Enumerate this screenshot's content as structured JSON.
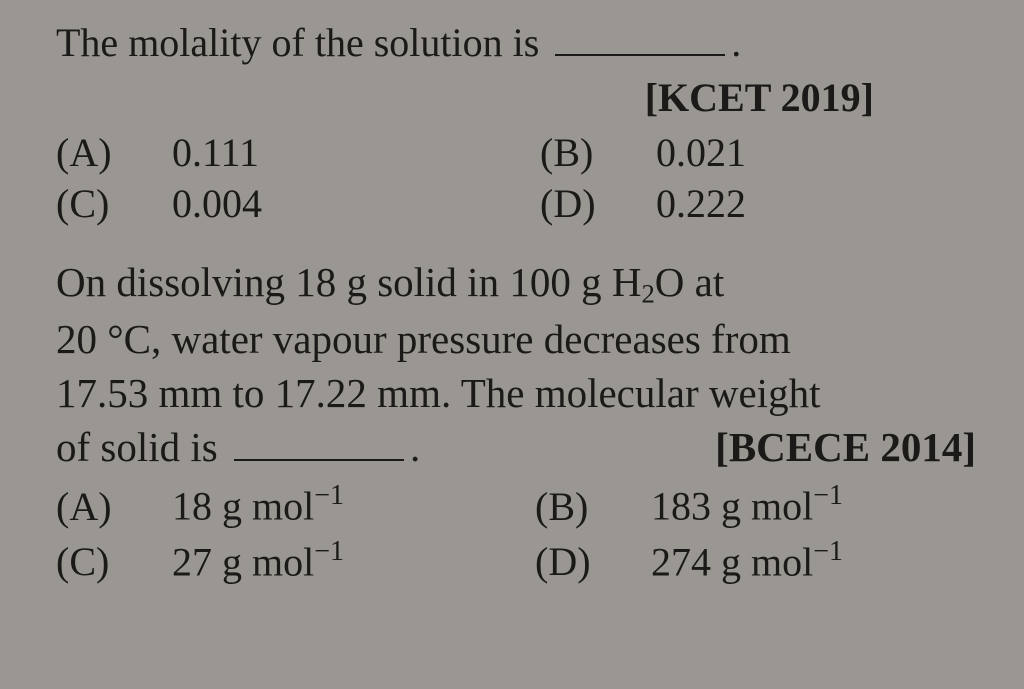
{
  "q1": {
    "stem_pre": "The molality of the solution is",
    "stem_post": ".",
    "tag": "[KCET 2019]",
    "options": {
      "A": {
        "letter": "(A)",
        "value": "0.111"
      },
      "B": {
        "letter": "(B)",
        "value": "0.021"
      },
      "C": {
        "letter": "(C)",
        "value": "0.004"
      },
      "D": {
        "letter": "(D)",
        "value": "0.222"
      }
    }
  },
  "q2": {
    "line1_a": "On dissolving 18 g solid in 100 g H",
    "line1_b": "O at",
    "h2o_sub": "2",
    "line2": "20 °C, water vapour pressure decreases from",
    "line3": "17.53 mm to 17.22 mm. The molecular weight",
    "line4_pre": "of solid is",
    "line4_post": ".",
    "tag": "[BCECE 2014]",
    "options": {
      "A": {
        "letter": "(A)",
        "value": "18 g mol",
        "exp": "−1"
      },
      "B": {
        "letter": "(B)",
        "value": "183 g mol",
        "exp": "−1"
      },
      "C": {
        "letter": "(C)",
        "value": "27 g mol",
        "exp": "−1"
      },
      "D": {
        "letter": "(D)",
        "value": "274 g mol",
        "exp": "−1"
      }
    }
  }
}
